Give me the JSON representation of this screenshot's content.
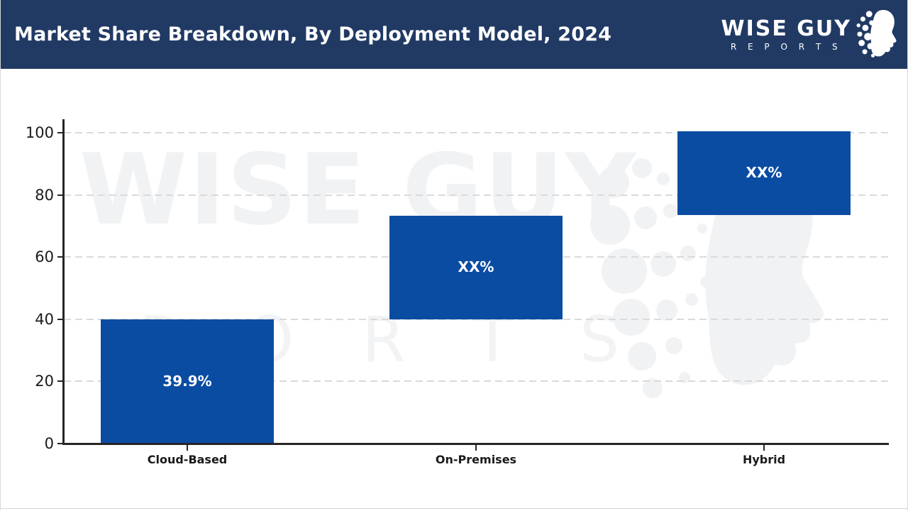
{
  "header": {
    "title": "Market Share Breakdown, By Deployment Model, 2024",
    "background": "#213A64",
    "logo": {
      "line1": "WISE GUY",
      "line2": "R E P O R T S"
    }
  },
  "watermark": {
    "line1": "WISE GUY",
    "line2": "P O R T S"
  },
  "chart_data": {
    "type": "bar",
    "subtype": "waterfall",
    "title": "Market Share Breakdown, By Deployment Model, 2024",
    "categories": [
      "Cloud-Based",
      "On-Premises",
      "Hybrid"
    ],
    "segments": [
      {
        "category": "Cloud-Based",
        "start": 0,
        "end": 39.9,
        "label": "39.9%"
      },
      {
        "category": "On-Premises",
        "start": 39.9,
        "end": 73.4,
        "label": "XX%"
      },
      {
        "category": "Hybrid",
        "start": 73.4,
        "end": 100.4,
        "label": "XX%"
      }
    ],
    "yticks": [
      0,
      20,
      40,
      60,
      80,
      100
    ],
    "ylim": [
      0,
      104
    ],
    "xlabel": "",
    "ylabel": "",
    "grid": {
      "horizontal": true,
      "style": "dashed",
      "color": "#DADADA"
    },
    "legend": "none",
    "bar_color": "#0B4CA3",
    "value_label_color": "#FFFFFF"
  }
}
